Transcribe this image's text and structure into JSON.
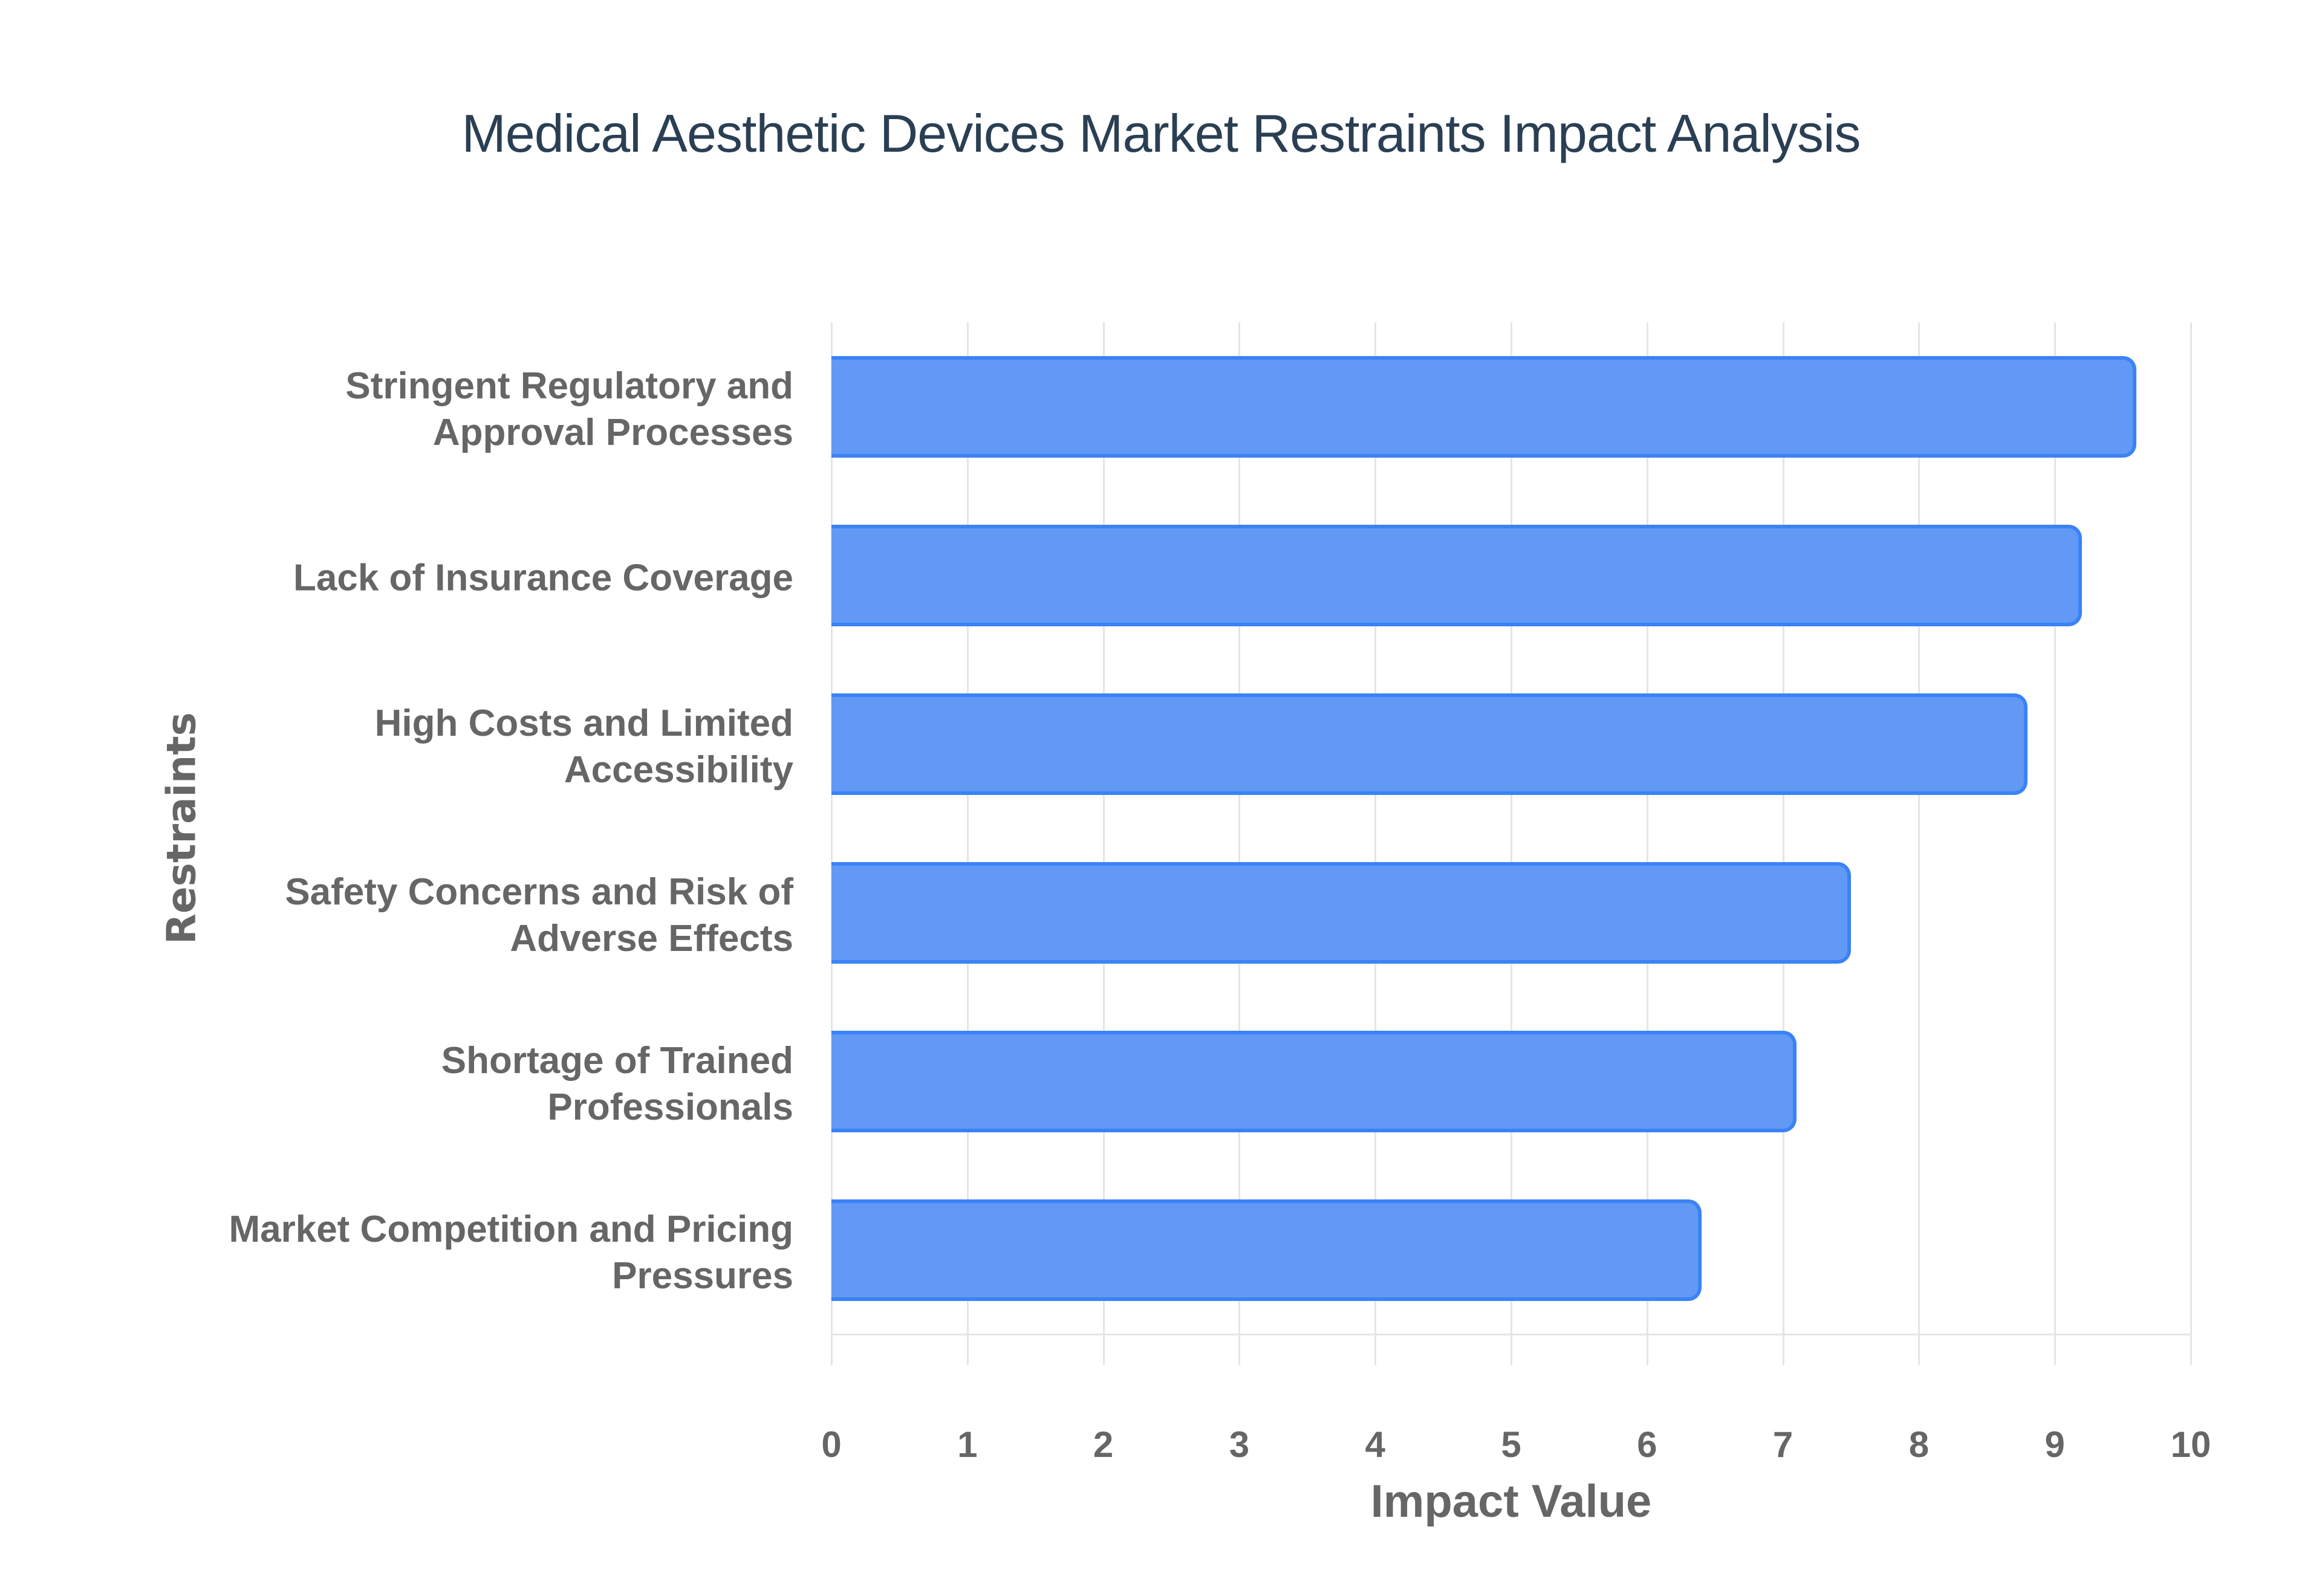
{
  "chart_data": {
    "type": "bar",
    "orientation": "horizontal",
    "title": "Medical Aesthetic Devices Market Restraints Impact Analysis",
    "xlabel": "Impact Value",
    "ylabel": "Restraints",
    "xlim": [
      0,
      10
    ],
    "x_ticks": [
      "0",
      "1",
      "2",
      "3",
      "4",
      "5",
      "6",
      "7",
      "8",
      "9",
      "10"
    ],
    "grid": true,
    "legend": "none",
    "categories": [
      "Stringent Regulatory and Approval Processes",
      "Lack of Insurance Coverage",
      "High Costs and Limited Accessibility",
      "Safety Concerns and Risk of Adverse Effects",
      "Shortage of Trained Professionals",
      "Market Competition and Pricing Pressures"
    ],
    "category_lines": [
      [
        "Stringent Regulatory and",
        "Approval Processes"
      ],
      [
        "Lack of Insurance Coverage"
      ],
      [
        "High Costs and Limited",
        "Accessibility"
      ],
      [
        "Safety Concerns and Risk of",
        "Adverse Effects"
      ],
      [
        "Shortage of Trained",
        "Professionals"
      ],
      [
        "Market Competition and Pricing",
        "Pressures"
      ]
    ],
    "values": [
      9.6,
      9.2,
      8.8,
      7.5,
      7.1,
      6.4
    ],
    "colors": {
      "bar_fill": "#6199f5",
      "bar_border": "#3b82f6",
      "title": "#2a3f54",
      "axis_text": "#666666",
      "grid": "#e5e5e5"
    }
  }
}
